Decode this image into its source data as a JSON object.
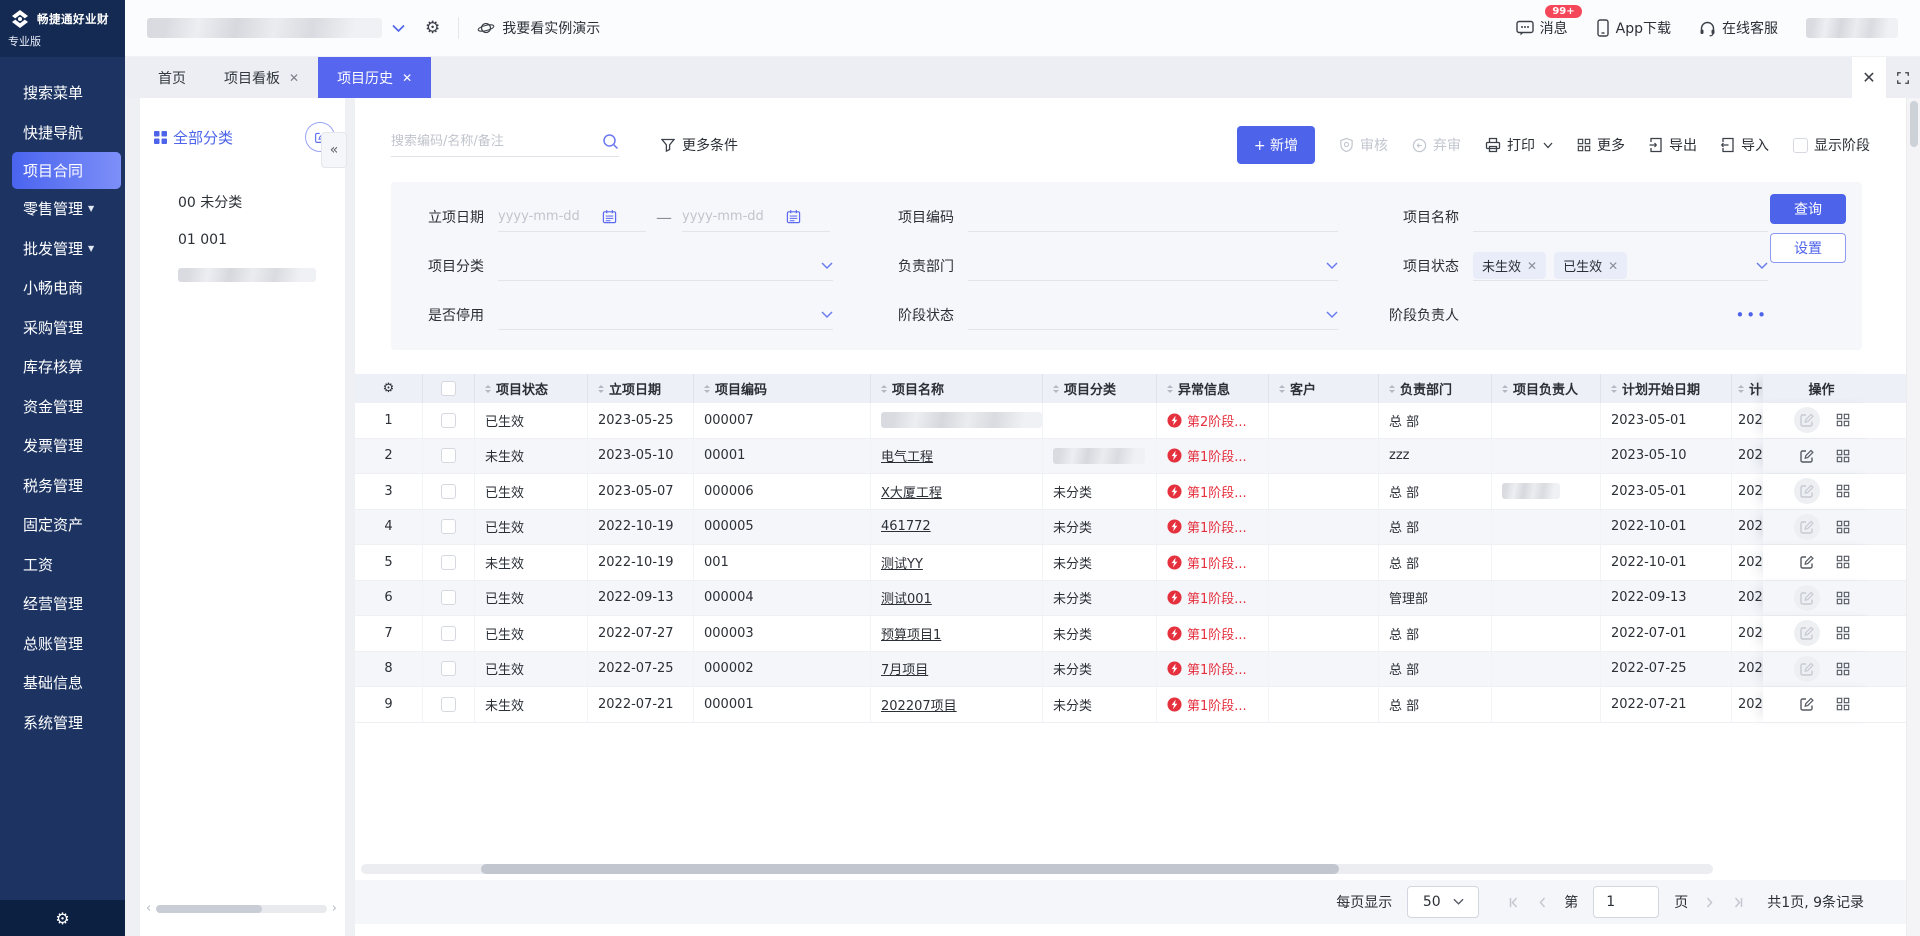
{
  "app": {
    "name": "畅捷通好业财",
    "edition": "专业版"
  },
  "topbar": {
    "demo": "我要看实例演示",
    "messages": "消息",
    "messages_badge": "99+",
    "app_download": "App下载",
    "online_support": "在线客服"
  },
  "tabs": [
    {
      "label": "首页",
      "closable": false,
      "active": false
    },
    {
      "label": "项目看板",
      "closable": true,
      "active": false
    },
    {
      "label": "项目历史",
      "closable": true,
      "active": true
    }
  ],
  "sidebar": {
    "items": [
      {
        "label": "搜索菜单"
      },
      {
        "label": "快捷导航"
      },
      {
        "label": "项目合同",
        "active": true
      },
      {
        "label": "零售管理",
        "arrow": true
      },
      {
        "label": "批发管理",
        "arrow": true
      },
      {
        "label": "小畅电商"
      },
      {
        "label": "采购管理"
      },
      {
        "label": "库存核算"
      },
      {
        "label": "资金管理"
      },
      {
        "label": "发票管理"
      },
      {
        "label": "税务管理"
      },
      {
        "label": "固定资产"
      },
      {
        "label": "工资"
      },
      {
        "label": "经营管理"
      },
      {
        "label": "总账管理"
      },
      {
        "label": "基础信息"
      },
      {
        "label": "系统管理"
      }
    ]
  },
  "category_panel": {
    "title": "全部分类",
    "items": [
      {
        "label": "00 未分类"
      },
      {
        "label": "01 001"
      },
      {
        "label": "",
        "redacted": true
      }
    ]
  },
  "toolbar": {
    "search_placeholder": "搜索编码/名称/备注",
    "more_conditions": "更多条件",
    "add": "新增",
    "audit": "审核",
    "discard_audit": "弃审",
    "print": "打印",
    "more": "更多",
    "export": "导出",
    "import": "导入",
    "show_stage": "显示阶段"
  },
  "filters": {
    "project_date": "立项日期",
    "date_from_ph": "yyyy-mm-dd",
    "date_to_ph": "yyyy-mm-dd",
    "project_code": "项目编码",
    "project_name": "项目名称",
    "project_category": "项目分类",
    "dept": "负责部门",
    "project_status": "项目状态",
    "status_tags": [
      "未生效",
      "已生效"
    ],
    "disabled": "是否停用",
    "stage_status": "阶段状态",
    "stage_owner": "阶段负责人",
    "query": "查询",
    "settings": "设置"
  },
  "table": {
    "columns": [
      "项目状态",
      "立项日期",
      "项目编码",
      "项目名称",
      "项目分类",
      "异常信息",
      "客户",
      "负责部门",
      "项目负责人",
      "计划开始日期",
      "计",
      "操作"
    ],
    "rows": [
      {
        "num": "1",
        "status": "已生效",
        "date": "2023-05-25",
        "code": "000007",
        "name": "",
        "name_redacted": true,
        "category": "",
        "error": "第2阶段...",
        "customer": "",
        "dept": "总 部",
        "manager": "",
        "plan_start": "2023-05-01",
        "plan_end_cut": "202",
        "editable": false
      },
      {
        "num": "2",
        "status": "未生效",
        "date": "2023-05-10",
        "code": "00001",
        "name": "电气工程",
        "category": "",
        "category_redacted": true,
        "error": "第1阶段...",
        "customer": "",
        "dept": "zzz",
        "manager": "",
        "plan_start": "2023-05-10",
        "plan_end_cut": "202",
        "editable": true
      },
      {
        "num": "3",
        "status": "已生效",
        "date": "2023-05-07",
        "code": "000006",
        "name": "X大厦工程",
        "category": "未分类",
        "error": "第1阶段...",
        "customer": "",
        "dept": "总 部",
        "manager": "",
        "manager_redacted": true,
        "plan_start": "2023-05-01",
        "plan_end_cut": "202",
        "editable": false
      },
      {
        "num": "4",
        "status": "已生效",
        "date": "2022-10-19",
        "code": "000005",
        "name": "461772",
        "category": "未分类",
        "error": "第1阶段...",
        "customer": "",
        "dept": "总 部",
        "manager": "",
        "plan_start": "2022-10-01",
        "plan_end_cut": "202",
        "editable": false
      },
      {
        "num": "5",
        "status": "未生效",
        "date": "2022-10-19",
        "code": "001",
        "name": "测试YY",
        "category": "未分类",
        "error": "第1阶段...",
        "customer": "",
        "dept": "总 部",
        "manager": "",
        "plan_start": "2022-10-01",
        "plan_end_cut": "202",
        "editable": true
      },
      {
        "num": "6",
        "status": "已生效",
        "date": "2022-09-13",
        "code": "000004",
        "name": "测试001",
        "category": "未分类",
        "error": "第1阶段...",
        "customer": "",
        "dept": "管理部",
        "manager": "",
        "plan_start": "2022-09-13",
        "plan_end_cut": "202",
        "editable": false
      },
      {
        "num": "7",
        "status": "已生效",
        "date": "2022-07-27",
        "code": "000003",
        "name": "预算项目1",
        "category": "未分类",
        "error": "第1阶段...",
        "customer": "",
        "dept": "总 部",
        "manager": "",
        "plan_start": "2022-07-01",
        "plan_end_cut": "202",
        "editable": false
      },
      {
        "num": "8",
        "status": "已生效",
        "date": "2022-07-25",
        "code": "000002",
        "name": "7月项目",
        "category": "未分类",
        "error": "第1阶段...",
        "customer": "",
        "dept": "总 部",
        "manager": "",
        "plan_start": "2022-07-25",
        "plan_end_cut": "202",
        "editable": false
      },
      {
        "num": "9",
        "status": "未生效",
        "date": "2022-07-21",
        "code": "000001",
        "name": "202207项目",
        "category": "未分类",
        "error": "第1阶段...",
        "customer": "",
        "dept": "总 部",
        "manager": "",
        "plan_start": "2022-07-21",
        "plan_end_cut": "202",
        "editable": true
      }
    ]
  },
  "pagination": {
    "per_page_label": "每页显示",
    "per_page": "50",
    "page_prefix": "第",
    "page_value": "1",
    "page_suffix": "页",
    "summary": "共1页, 9条记录"
  },
  "colors": {
    "accent": "#4d63ea",
    "sidebar": "#1d3463",
    "active_tab": "#5766ee",
    "error_red": "#e5303e",
    "badge_red": "#f4485a"
  }
}
